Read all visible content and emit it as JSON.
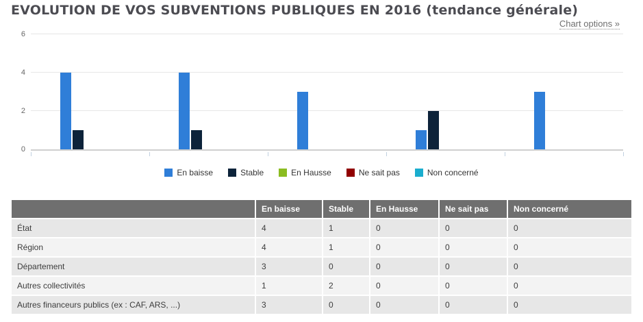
{
  "header": {
    "title": "EVOLUTION DE VOS SUBVENTIONS PUBLIQUES EN 2016 (tendance générale)",
    "chart_options_label": "Chart options »"
  },
  "chart_data": {
    "type": "bar",
    "title": "EVOLUTION DE VOS SUBVENTIONS PUBLIQUES EN 2016 (tendance générale)",
    "categories": [
      "État",
      "Région",
      "Département",
      "Autres collectivités",
      "Autres financeurs publics (ex : CAF, ARS, ...)"
    ],
    "series": [
      {
        "name": "En baisse",
        "color": "#2f7ed8",
        "values": [
          4,
          4,
          3,
          1,
          3
        ]
      },
      {
        "name": "Stable",
        "color": "#0d233a",
        "values": [
          1,
          1,
          0,
          2,
          0
        ]
      },
      {
        "name": "En Hausse",
        "color": "#8bbc21",
        "values": [
          0,
          0,
          0,
          0,
          0
        ]
      },
      {
        "name": "Ne sait pas",
        "color": "#910000",
        "values": [
          0,
          0,
          0,
          0,
          0
        ]
      },
      {
        "name": "Non concerné",
        "color": "#1aadce",
        "values": [
          0,
          0,
          0,
          0,
          0
        ]
      }
    ],
    "xlabel": "",
    "ylabel": "",
    "ylim": [
      0,
      6
    ],
    "yticks": [
      6,
      4,
      2,
      0
    ],
    "grid": true,
    "legend_position": "bottom",
    "x_tick_labels_shown": false
  },
  "table": {
    "columns": [
      "",
      "En baisse",
      "Stable",
      "En Hausse",
      "Ne sait pas",
      "Non concerné"
    ],
    "rows": [
      {
        "label": "État",
        "values": [
          4,
          1,
          0,
          0,
          0
        ]
      },
      {
        "label": "Région",
        "values": [
          4,
          1,
          0,
          0,
          0
        ]
      },
      {
        "label": "Département",
        "values": [
          3,
          0,
          0,
          0,
          0
        ]
      },
      {
        "label": "Autres collectivités",
        "values": [
          1,
          2,
          0,
          0,
          0
        ]
      },
      {
        "label": "Autres financeurs publics (ex : CAF, ARS, ...)",
        "values": [
          3,
          0,
          0,
          0,
          0
        ]
      }
    ]
  },
  "colors": {
    "grid_line": "#e6e6e6",
    "axis_line": "#cfcfcf",
    "axis_tick": "#c0d0e0",
    "table_header_bg": "#6f6f6f",
    "row_dark_bg": "#e7e7e7",
    "row_light_bg": "#f3f3f3",
    "title_text": "#4c4c52"
  }
}
